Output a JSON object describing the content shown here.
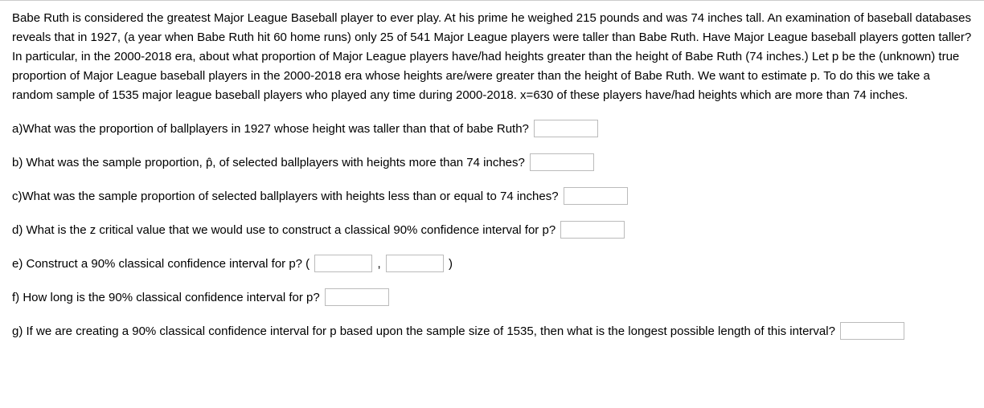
{
  "intro": "Babe Ruth is considered the greatest Major League Baseball player to ever play. At his prime he weighed 215 pounds and was 74 inches tall. An examination of baseball databases reveals that in 1927, (a year when Babe Ruth hit 60 home runs) only 25 of 541 Major League players were taller than Babe Ruth. Have Major League baseball players gotten taller? In particular, in the 2000-2018 era, about what proportion of Major League players have/had heights greater than the height of Babe Ruth (74 inches.) Let p be the (unknown) true proportion of Major League baseball players in the 2000-2018 era whose heights are/were greater than the height of Babe Ruth. We want to estimate p. To do this we take a random sample of 1535 major league baseball players who played any time during 2000-2018. x=630 of these players have/had heights which are more than 74 inches.",
  "questions": {
    "a": "a)What was the proportion of ballplayers in 1927 whose height was taller than that of babe Ruth?",
    "b_pre": "b) What was the sample proportion, ",
    "b_phat": "p̂",
    "b_post": ", of selected ballplayers with heights more than 74 inches?",
    "c": "c)What was the sample proportion of selected ballplayers with heights less than or equal to 74 inches?",
    "d": "d) What is the z critical value that we would use to construct a classical 90% confidence interval for p?",
    "e_pre": "e) Construct a 90% classical confidence interval for p? (",
    "e_comma": " , ",
    "e_post": " )",
    "f": "f) How long is the 90% classical confidence interval for p?",
    "g": "g) If we are creating a 90% classical confidence interval for p based upon the sample size of 1535, then what is the longest possible length of this interval?"
  },
  "style": {
    "input_border": "#bbbbbb",
    "container_border": "#cccccc",
    "text_color": "#000000",
    "background": "#ffffff",
    "font_size_body": 15,
    "line_height": 1.6,
    "input_width": 80,
    "input_height": 22
  }
}
